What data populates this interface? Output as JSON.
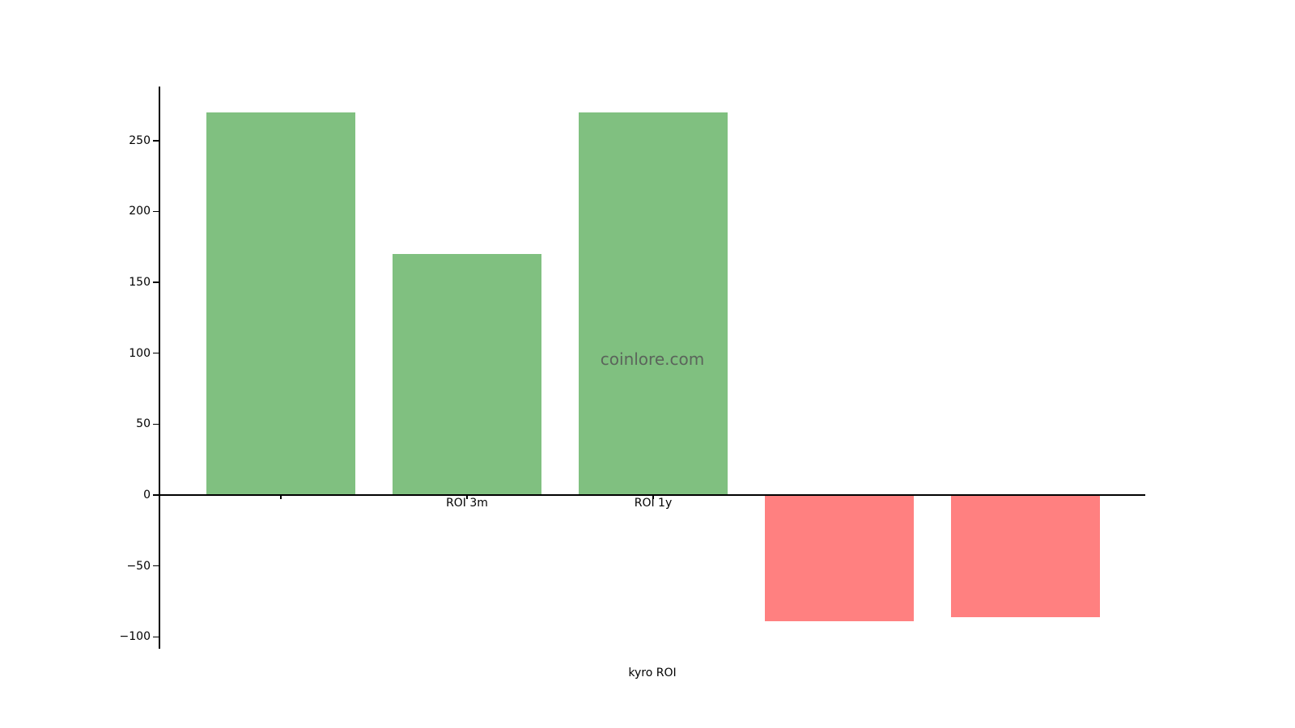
{
  "watermark": "coinlore.com",
  "chart_data": {
    "type": "bar",
    "title": "",
    "xlabel": "kyro ROI",
    "ylabel": "",
    "categories": [
      "",
      "ROI 3m",
      "ROI 1y",
      "",
      ""
    ],
    "values": [
      270,
      170,
      270,
      -89,
      -86
    ],
    "yticks": [
      -100,
      -50,
      0,
      50,
      100,
      150,
      200,
      250
    ],
    "ylim": [
      -107,
      288
    ],
    "grid": false,
    "legend": null,
    "colors": {
      "positive_bar": "#80c080",
      "negative_bar": "#ff8080",
      "axis": "#000000",
      "text": "#000000",
      "watermark": "#555555",
      "background": "#ffffff"
    }
  }
}
